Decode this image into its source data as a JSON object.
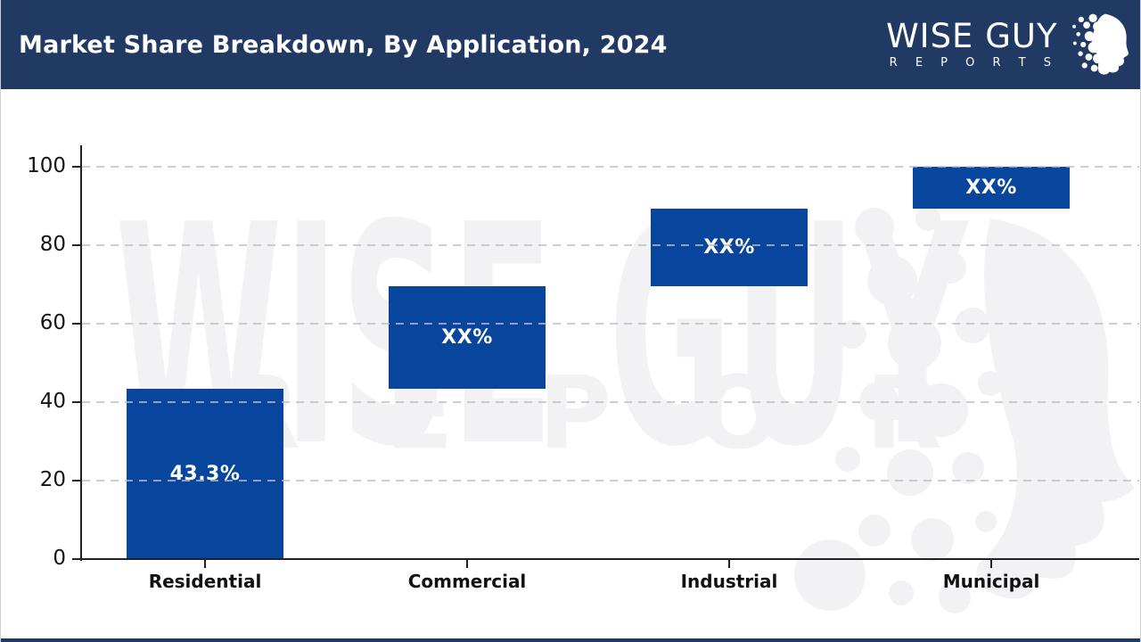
{
  "header": {
    "title": "Market Share Breakdown, By Application, 2024",
    "logo": {
      "primary": "WISE GUY",
      "secondary": "R E P O R T S"
    }
  },
  "watermark": {
    "primary": "WISE GUY",
    "secondary": "R E P O R T S"
  },
  "colors": {
    "header_bg": "#213a63",
    "bar": "#08459c",
    "bar_label": "#ffffff",
    "gridline": "#c9c9c9",
    "axis": "#222222",
    "watermark": "#f2f2f4",
    "background": "#ffffff",
    "frame_border": "#cfcfcf"
  },
  "chart_data": {
    "type": "bar",
    "subtype": "waterfall",
    "title": "Market Share Breakdown, By Application, 2024",
    "categories": [
      "Residential",
      "Commercial",
      "Industrial",
      "Municipal"
    ],
    "series": [
      {
        "name": "Market Share",
        "segments": [
          {
            "category": "Residential",
            "start": 0,
            "end": 43.3,
            "label": "43.3%"
          },
          {
            "category": "Commercial",
            "start": 43.3,
            "end": 69.5,
            "label": "XX%"
          },
          {
            "category": "Industrial",
            "start": 69.5,
            "end": 89.3,
            "label": "XX%"
          },
          {
            "category": "Municipal",
            "start": 89.3,
            "end": 100,
            "label": "XX%"
          }
        ]
      }
    ],
    "xlabel": "",
    "ylabel": "",
    "yticks": [
      0,
      20,
      40,
      60,
      80,
      100
    ],
    "ylim": [
      0,
      105.5
    ],
    "grid": "horizontal-dashed-over-bars",
    "legend": "none"
  }
}
